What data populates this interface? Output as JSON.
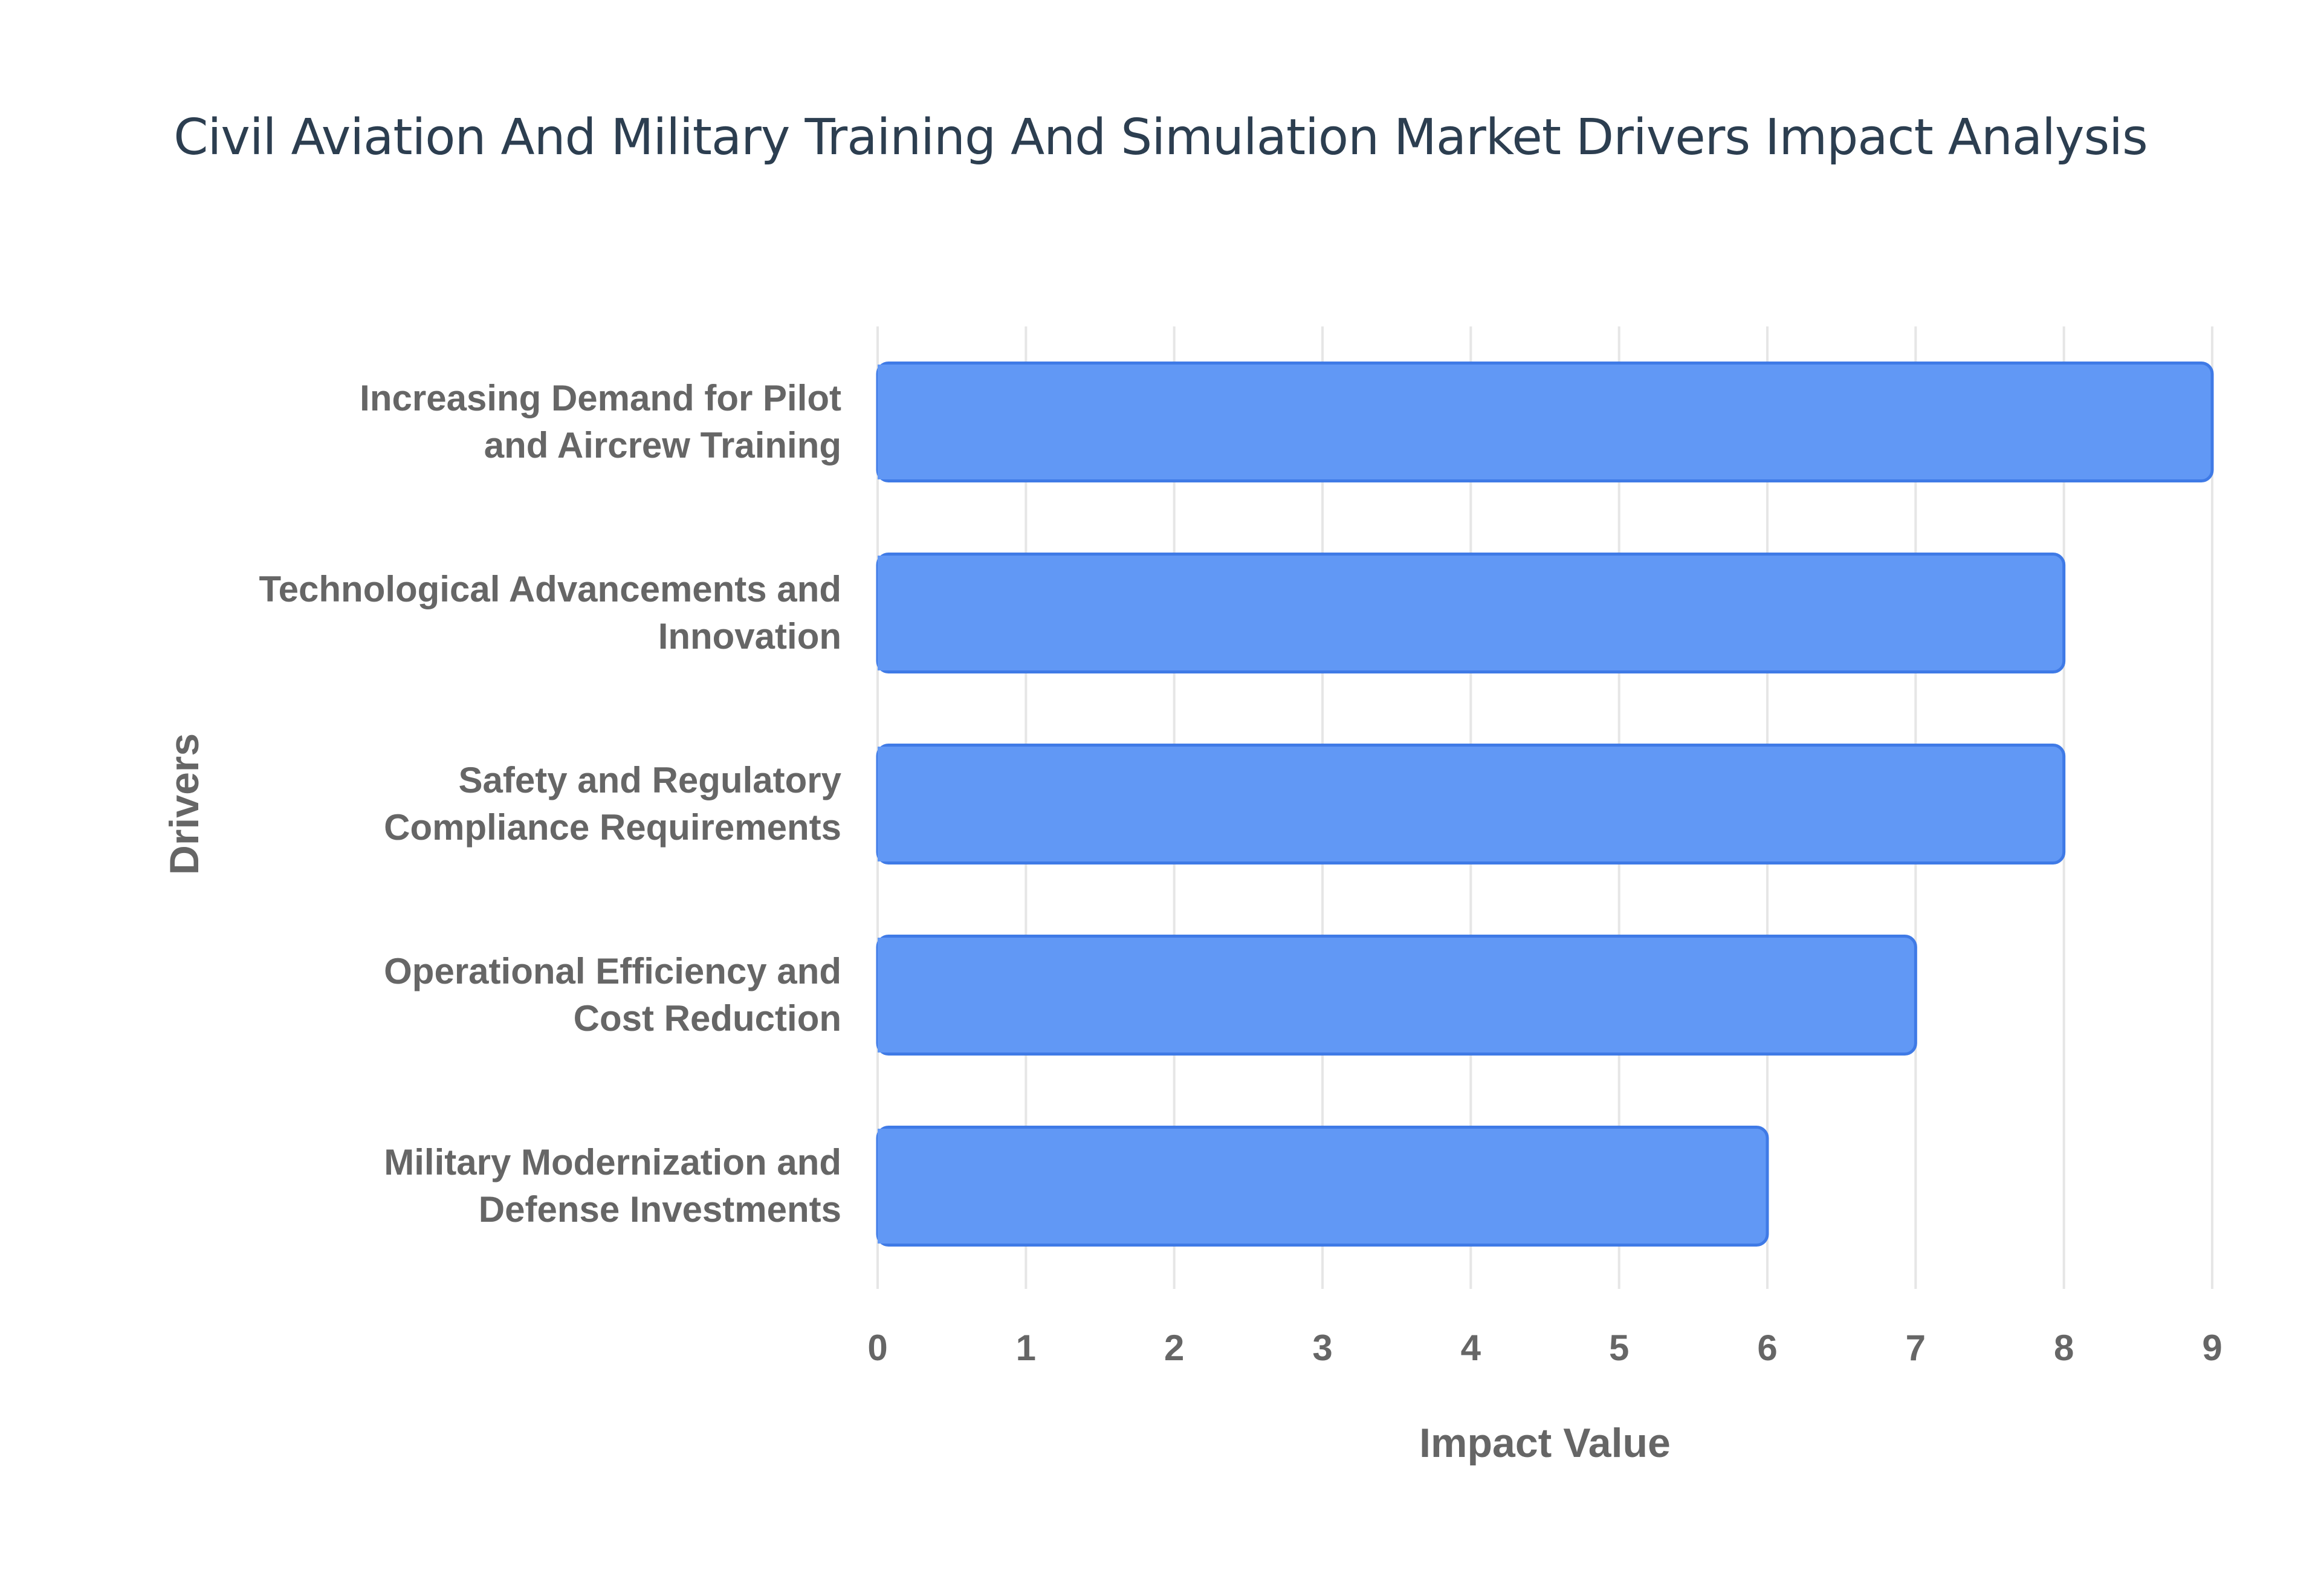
{
  "chart_data": {
    "type": "bar",
    "orientation": "horizontal",
    "title": "Civil Aviation And Military Training And Simulation Market Drivers Impact Analysis",
    "xlabel": "Impact Value",
    "ylabel": "Drivers",
    "xlim": [
      0,
      9
    ],
    "x_ticks": [
      0,
      1,
      2,
      3,
      4,
      5,
      6,
      7,
      8,
      9
    ],
    "grid": true,
    "legend": "none",
    "categories": [
      [
        "Increasing Demand for Pilot",
        "and Aircrew Training"
      ],
      [
        "Technological Advancements and",
        "Innovation"
      ],
      [
        "Safety and Regulatory",
        "Compliance Requirements"
      ],
      [
        "Operational Efficiency and",
        "Cost Reduction"
      ],
      [
        "Military Modernization and",
        "Defense Investments"
      ]
    ],
    "values": [
      9,
      8,
      8,
      7,
      6
    ],
    "colors": {
      "bar_fill": "#6198f5",
      "bar_stroke": "#3f7ae6",
      "title": "#2c3e50",
      "text": "#666666",
      "grid": "#e6e6e6"
    }
  }
}
